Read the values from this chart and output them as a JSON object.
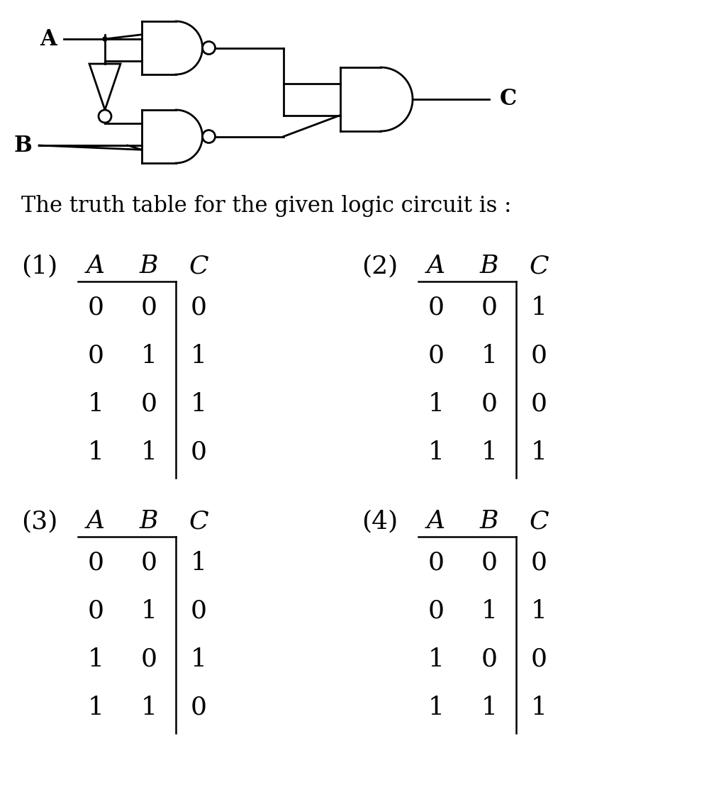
{
  "title": "The truth table for the given logic circuit is :",
  "background_color": "#ffffff",
  "text_color": "#000000",
  "tables": [
    {
      "label": "(1)",
      "headers": [
        "A",
        "B",
        "C"
      ],
      "rows": [
        [
          "0",
          "0",
          "0"
        ],
        [
          "0",
          "1",
          "1"
        ],
        [
          "1",
          "0",
          "1"
        ],
        [
          "1",
          "1",
          "0"
        ]
      ]
    },
    {
      "label": "(2)",
      "headers": [
        "A",
        "B",
        "C"
      ],
      "rows": [
        [
          "0",
          "0",
          "1"
        ],
        [
          "0",
          "1",
          "0"
        ],
        [
          "1",
          "0",
          "0"
        ],
        [
          "1",
          "1",
          "1"
        ]
      ]
    },
    {
      "label": "(3)",
      "headers": [
        "A",
        "B",
        "C"
      ],
      "rows": [
        [
          "0",
          "0",
          "1"
        ],
        [
          "0",
          "1",
          "0"
        ],
        [
          "1",
          "0",
          "1"
        ],
        [
          "1",
          "1",
          "0"
        ]
      ]
    },
    {
      "label": "(4)",
      "headers": [
        "A",
        "B",
        "C"
      ],
      "rows": [
        [
          "0",
          "0",
          "0"
        ],
        [
          "0",
          "1",
          "1"
        ],
        [
          "1",
          "0",
          "0"
        ],
        [
          "1",
          "1",
          "1"
        ]
      ]
    }
  ],
  "font_size_title": 22,
  "font_size_table": 26,
  "font_size_label": 26,
  "font_size_circuit": 22,
  "lw_circuit": 2.0,
  "lw_table": 1.8
}
